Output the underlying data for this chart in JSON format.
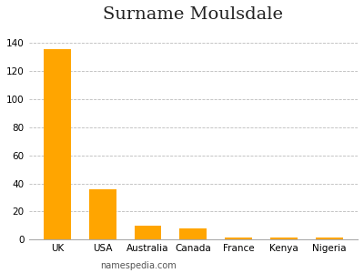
{
  "title": "Surname Moulsdale",
  "categories": [
    "UK",
    "USA",
    "Australia",
    "Canada",
    "France",
    "Kenya",
    "Nigeria"
  ],
  "values": [
    136,
    36,
    10,
    8,
    1.5,
    1.5,
    1.5
  ],
  "bar_color": "#FFA500",
  "ylim": [
    0,
    150
  ],
  "yticks": [
    0,
    20,
    40,
    60,
    80,
    100,
    120,
    140
  ],
  "ylabel": "",
  "xlabel": "",
  "title_fontsize": 14,
  "tick_fontsize": 7.5,
  "watermark": "namespedia.com",
  "watermark_fontsize": 7,
  "background_color": "#ffffff",
  "grid_color": "#bbbbbb"
}
